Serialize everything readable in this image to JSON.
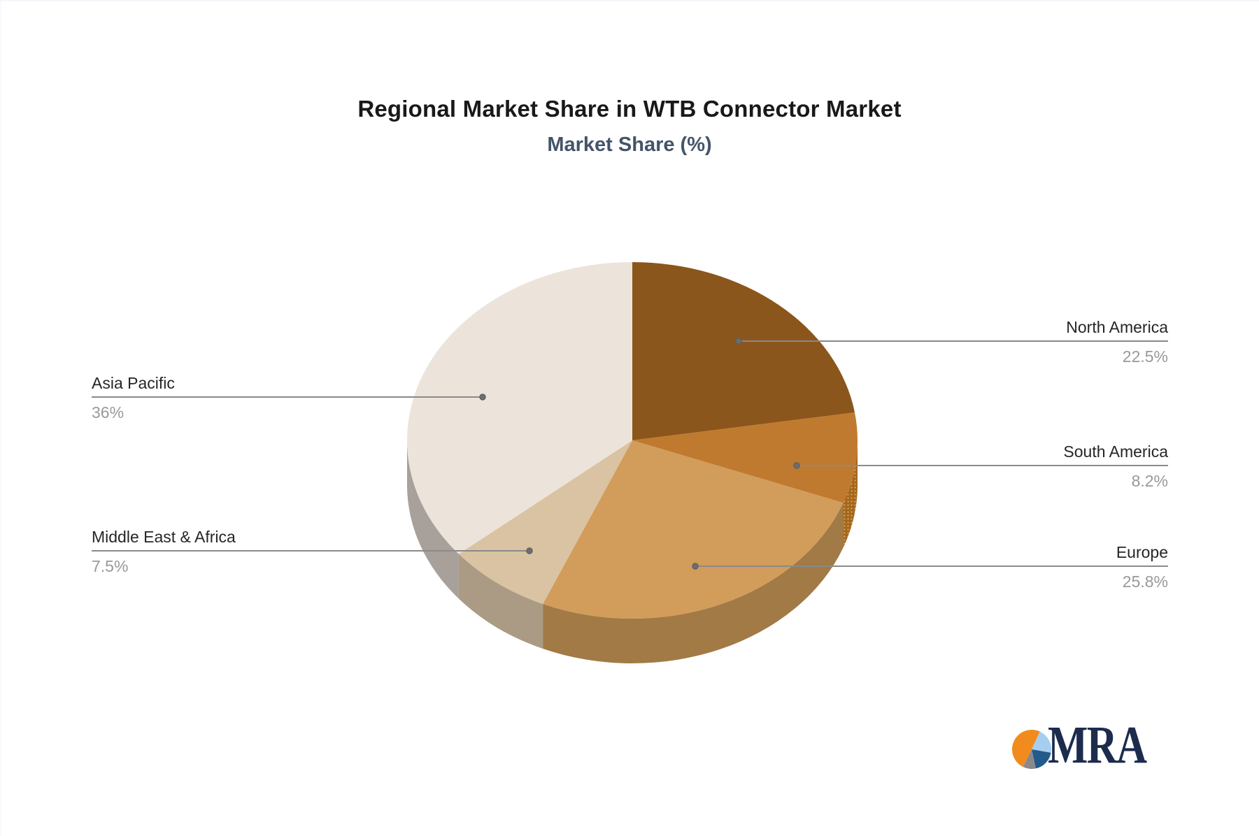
{
  "header": {
    "title": "Regional Market Share in WTB Connector Market",
    "subtitle": "Market Share (%)"
  },
  "chart_data": {
    "type": "pie",
    "style": "3d-pie",
    "title": "Regional Market Share in WTB Connector Market",
    "subtitle": "Market Share (%)",
    "unit": "%",
    "start_angle": "12-oclock, clockwise",
    "legend_position": "callout-labels",
    "slices": [
      {
        "label": "North America",
        "value": 22.5,
        "display": "22.5%",
        "color": "#8B561B",
        "side_color": "#744814",
        "label_side": "right"
      },
      {
        "label": "South America",
        "value": 8.2,
        "display": "8.2%",
        "color": "#C07A2F",
        "side_color": "#A5661C",
        "label_side": "right"
      },
      {
        "label": "Europe",
        "value": 25.8,
        "display": "25.8%",
        "color": "#D29C5A",
        "side_color": "#A17A46",
        "label_side": "right"
      },
      {
        "label": "Middle East & Africa",
        "value": 7.5,
        "display": "7.5%",
        "color": "#D9C3A2",
        "side_color": "#AB9B84",
        "label_side": "left"
      },
      {
        "label": "Asia Pacific",
        "value": 36,
        "display": "36%",
        "color": "#ECE4DB",
        "side_color": "#A8A19B",
        "label_side": "left"
      }
    ],
    "side_dot_accent": "#D9A760",
    "label_color": "#262626",
    "value_color": "#999999",
    "leader_color": "#8A8A8A",
    "leader_dot_color": "#6D6D6D"
  },
  "logo": {
    "text": "MRA",
    "text_color": "#1C2B4E",
    "icon": "pie-mark",
    "icon_colors": {
      "orange": "#F28B1E",
      "light_blue": "#A6CEF0",
      "navy": "#235A8C",
      "gray": "#8A8A8A"
    }
  }
}
